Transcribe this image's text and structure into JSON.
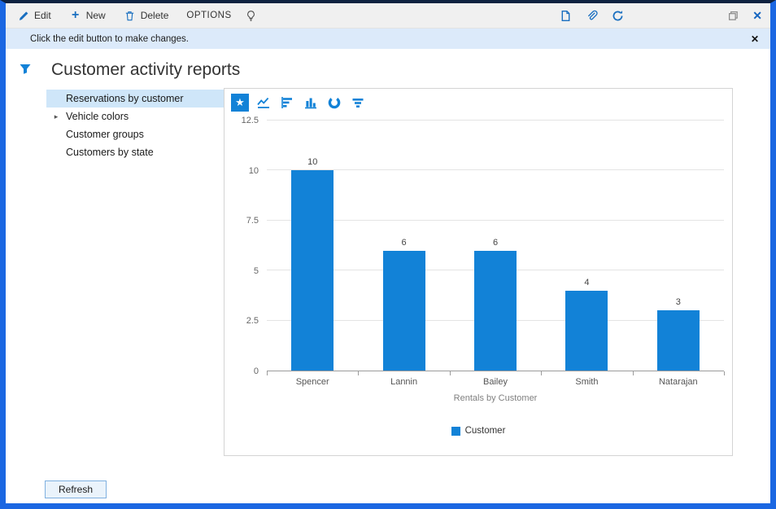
{
  "colors": {
    "accent_blue": "#1282d7",
    "toolbar_icon_blue": "#1a6fc0",
    "selection_bg": "#cfe6f9",
    "notification_bg": "#dceafa",
    "window_border": "#1b67e2"
  },
  "toolbar": {
    "edit_label": "Edit",
    "new_label": "New",
    "delete_label": "Delete",
    "options_label": "OPTIONS",
    "right_icons": [
      "document-icon",
      "paperclip-icon",
      "refresh-icon",
      "restore-window-icon",
      "close-window-icon"
    ]
  },
  "notification": {
    "text": "Click the edit button to make changes.",
    "close": "✕"
  },
  "page": {
    "title": "Customer activity reports"
  },
  "report_list": {
    "items": [
      {
        "label": "Reservations by customer",
        "selected": true,
        "expandable": false
      },
      {
        "label": "Vehicle colors",
        "selected": false,
        "expandable": true
      },
      {
        "label": "Customer groups",
        "selected": false,
        "expandable": false
      },
      {
        "label": "Customers by state",
        "selected": false,
        "expandable": false
      }
    ]
  },
  "chart_toolbar": {
    "icons": [
      "favorite-star-icon",
      "line-chart-icon",
      "hbar-chart-icon",
      "column-chart-icon",
      "doughnut-chart-icon",
      "funnel-chart-icon"
    ],
    "selected": "favorite-star-icon"
  },
  "chart_data": {
    "type": "bar",
    "title": "",
    "categories": [
      "Spencer",
      "Lannin",
      "Bailey",
      "Smith",
      "Natarajan"
    ],
    "series": [
      {
        "name": "Customer",
        "values": [
          10,
          6,
          6,
          4,
          3
        ]
      }
    ],
    "data_labels": [
      10,
      6,
      6,
      4,
      3
    ],
    "xlabel": "Rentals by Customer",
    "ylabel": "",
    "ylim": [
      0,
      12.5
    ],
    "yticks": [
      0,
      2.5,
      5,
      7.5,
      10,
      12.5
    ],
    "bar_color": "#1282d7",
    "grid": true,
    "legend": [
      "Customer"
    ],
    "legend_position": "bottom"
  },
  "footer": {
    "refresh_label": "Refresh"
  }
}
